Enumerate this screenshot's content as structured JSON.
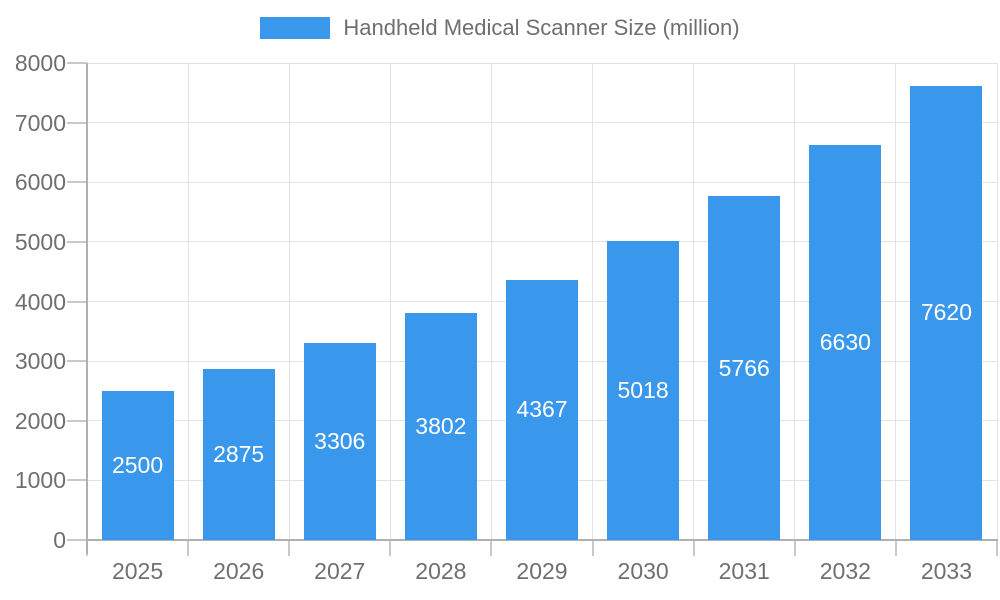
{
  "chart_data": {
    "type": "bar",
    "title": "Handheld Medical Scanner Size (million)",
    "categories": [
      "2025",
      "2026",
      "2027",
      "2028",
      "2029",
      "2030",
      "2031",
      "2032",
      "2033"
    ],
    "values": [
      2500,
      2875,
      3306,
      3802,
      4367,
      5018,
      5766,
      6630,
      7620
    ],
    "xlabel": "",
    "ylabel": "",
    "ylim": [
      0,
      8000
    ],
    "yticks": [
      0,
      1000,
      2000,
      3000,
      4000,
      5000,
      6000,
      7000,
      8000
    ],
    "grid": true,
    "legend_position": "top-center",
    "bar_value_labels": "inside-center-white",
    "colors": {
      "bar": "#3A98EC",
      "bar_label": "#FFFFFF",
      "text": "#6F6F6F",
      "grid": "#E3E3E3",
      "axis": "#B0B0B0",
      "tick": "#C9C9C9",
      "background": "#FFFFFF"
    }
  }
}
